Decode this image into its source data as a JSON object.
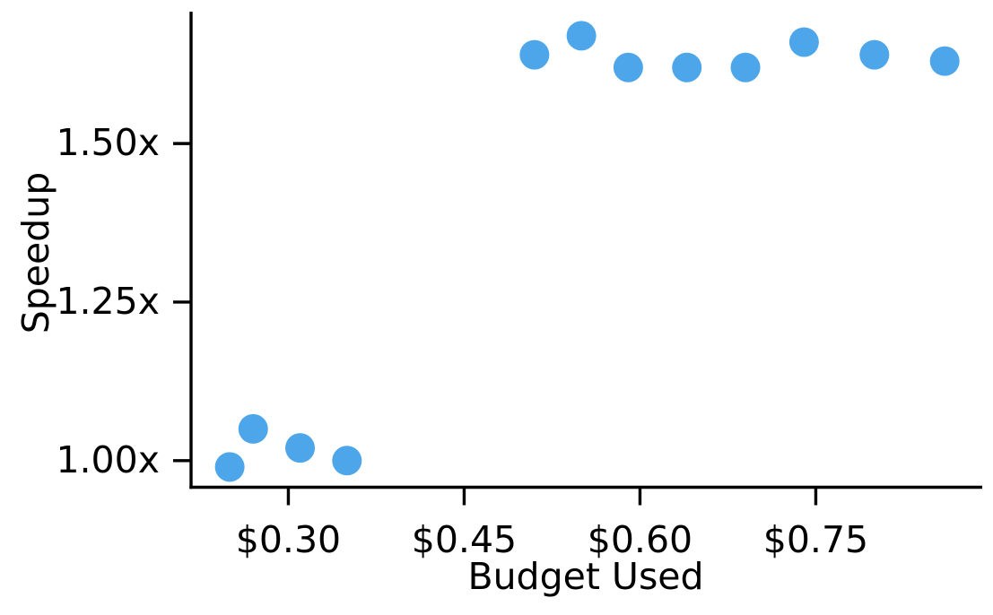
{
  "chart_data": {
    "type": "scatter",
    "title": "",
    "xlabel": "Budget Used",
    "ylabel": "Speedup",
    "x": [
      0.25,
      0.27,
      0.31,
      0.35,
      0.51,
      0.55,
      0.59,
      0.64,
      0.69,
      0.74,
      0.8,
      0.86
    ],
    "y": [
      0.99,
      1.05,
      1.02,
      1.0,
      1.64,
      1.67,
      1.62,
      1.62,
      1.62,
      1.66,
      1.64,
      1.63
    ],
    "xticks": [
      {
        "value": 0.3,
        "label": "$0.30"
      },
      {
        "value": 0.45,
        "label": "$0.45"
      },
      {
        "value": 0.6,
        "label": "$0.60"
      },
      {
        "value": 0.75,
        "label": "$0.75"
      }
    ],
    "yticks": [
      {
        "value": 1.0,
        "label": "1.00x"
      },
      {
        "value": 1.25,
        "label": "1.25x"
      },
      {
        "value": 1.5,
        "label": "1.50x"
      }
    ],
    "xlim": [
      0.217,
      0.892
    ],
    "ylim": [
      0.958,
      1.708
    ],
    "grid": false,
    "legend": null,
    "marker_color": "#4da6e9",
    "axis_color": "#000000",
    "text_color": "#000000",
    "background_color": "#ffffff"
  }
}
